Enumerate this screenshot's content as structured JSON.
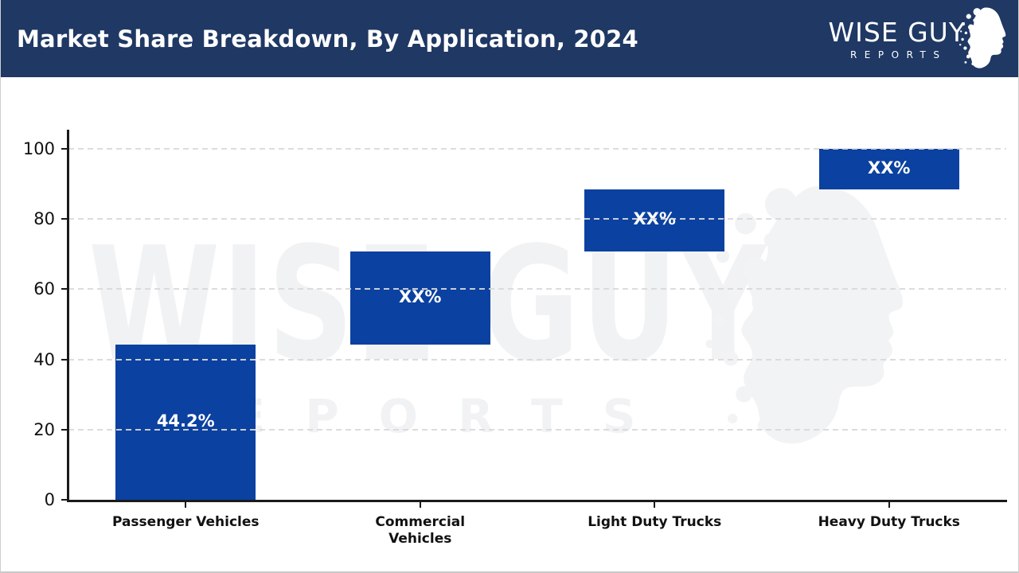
{
  "header": {
    "title": "Market Share Breakdown, By Application, 2024",
    "logo": {
      "line1": "WISE GUY",
      "line2": "REPORTS"
    }
  },
  "watermark": {
    "line1": "WISE GUY",
    "line2": "REPORTS"
  },
  "colors": {
    "header_bg": "#1f3864",
    "bar": "#0b41a0",
    "bar_label": "#ffffff",
    "watermark": "#f1f2f4",
    "gridline": "#d9d9d9",
    "axis": "#1a1a1a"
  },
  "chart_data": {
    "type": "bar",
    "subtype": "waterfall",
    "title": "Market Share Breakdown, By Application, 2024",
    "categories": [
      "Passenger Vehicles",
      "Commercial\nVehicles",
      "Light Duty Trucks",
      "Heavy Duty Trucks"
    ],
    "segments": [
      {
        "category": "Passenger Vehicles",
        "start": 0,
        "end": 44.2,
        "label": "44.2%"
      },
      {
        "category": "Commercial Vehicles",
        "start": 44.2,
        "end": 70.7,
        "label": "XX%"
      },
      {
        "category": "Light Duty Trucks",
        "start": 70.7,
        "end": 88.4,
        "label": "XX%"
      },
      {
        "category": "Heavy Duty Trucks",
        "start": 88.4,
        "end": 100,
        "label": "XX%"
      }
    ],
    "xlabel": "",
    "ylabel": "",
    "ylim": [
      0,
      100
    ],
    "yticks": [
      0,
      20,
      40,
      60,
      80,
      100
    ],
    "grid": "horizontal-dashed",
    "legend": "none"
  }
}
